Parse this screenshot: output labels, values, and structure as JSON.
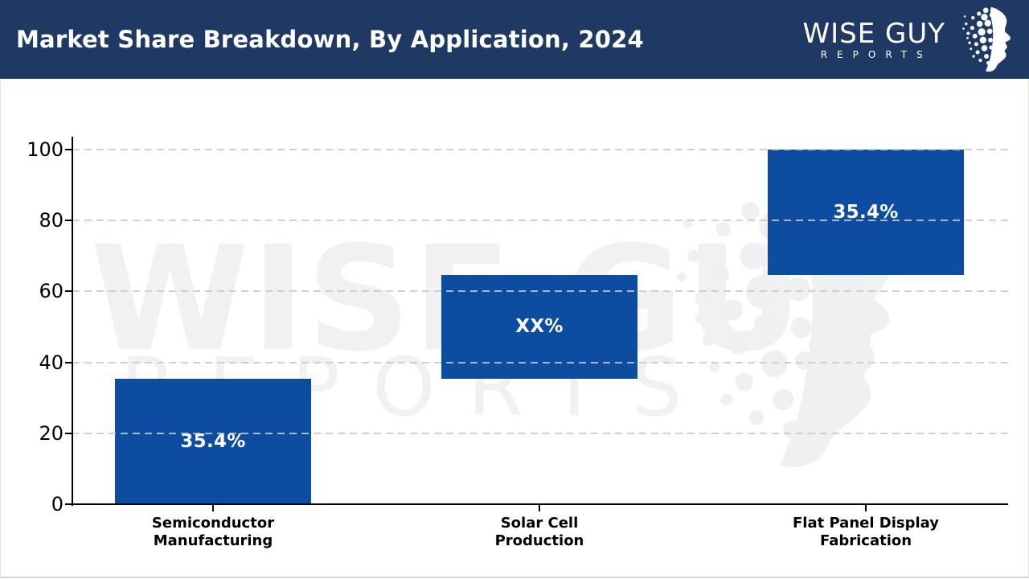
{
  "header": {
    "title": "Market Share Breakdown, By Application, 2024",
    "logo": {
      "line1": "WISE GUY",
      "line2": "REPORTS"
    }
  },
  "watermark": {
    "line1": "WISE GUY",
    "line2": "REPORTS"
  },
  "colors": {
    "header_bg": "#203864",
    "bar": "#0c4da1",
    "bar_label": "#ffffff",
    "axis": "#000000",
    "grid": "#c9c9c9",
    "watermark": "#f1f1f4"
  },
  "chart_data": {
    "type": "bar",
    "variant": "floating-stacked",
    "title": "Market Share Breakdown, By Application, 2024",
    "categories": [
      "Semiconductor Manufacturing",
      "Solar Cell Production",
      "Flat Panel Display Fabrication"
    ],
    "category_lines": [
      [
        "Semiconductor",
        "Manufacturing"
      ],
      [
        "Solar Cell",
        "Production"
      ],
      [
        "Flat Panel Display",
        "Fabrication"
      ]
    ],
    "segments": [
      {
        "start": 0,
        "end": 35.4,
        "label": "35.4%"
      },
      {
        "start": 35.4,
        "end": 64.6,
        "label": "XX%"
      },
      {
        "start": 64.6,
        "end": 100,
        "label": "35.4%"
      }
    ],
    "ylim": [
      0,
      100
    ],
    "yticks": [
      0,
      20,
      40,
      60,
      80,
      100
    ],
    "grid": true,
    "legend": false
  }
}
